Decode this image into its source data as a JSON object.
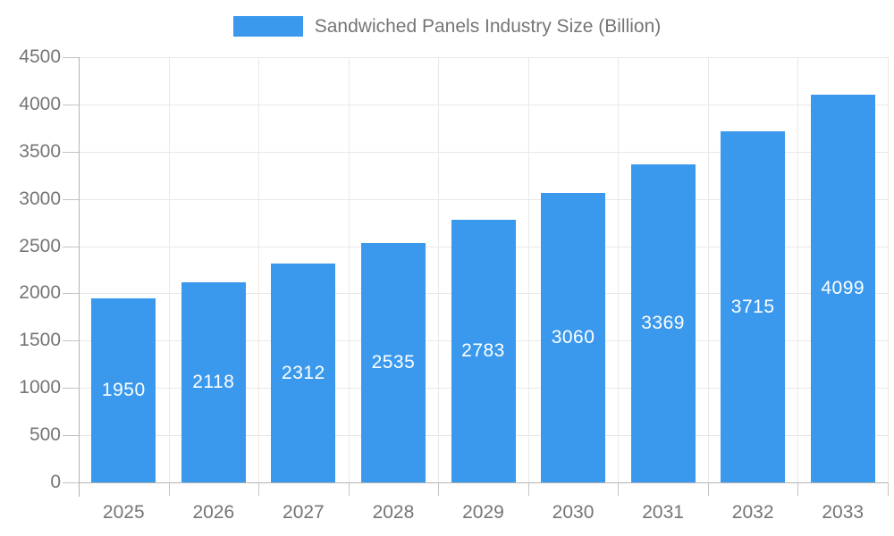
{
  "chart_data": {
    "type": "bar",
    "title": "",
    "legend": "Sandwiched Panels Industry Size (Billion)",
    "legend_position": "top-center",
    "categories": [
      "2025",
      "2026",
      "2027",
      "2028",
      "2029",
      "2030",
      "2031",
      "2032",
      "2033"
    ],
    "values": [
      1950,
      2118,
      2312,
      2535,
      2783,
      3060,
      3369,
      3715,
      4099
    ],
    "xlabel": "",
    "ylabel": "",
    "ylim": [
      0,
      4500
    ],
    "ytick_step": 500,
    "yticks": [
      0,
      500,
      1000,
      1500,
      2000,
      2500,
      3000,
      3500,
      4000,
      4500
    ],
    "grid": true,
    "colors": {
      "bar": "#3b99ed",
      "bar_value_label": "#ffffff",
      "gridline": "#e8e8e8",
      "axis_line": "#b3b3b3",
      "tick": "#c4c4c4",
      "axis_text": "#757575",
      "legend_text": "#757575",
      "background": "#ffffff"
    }
  }
}
